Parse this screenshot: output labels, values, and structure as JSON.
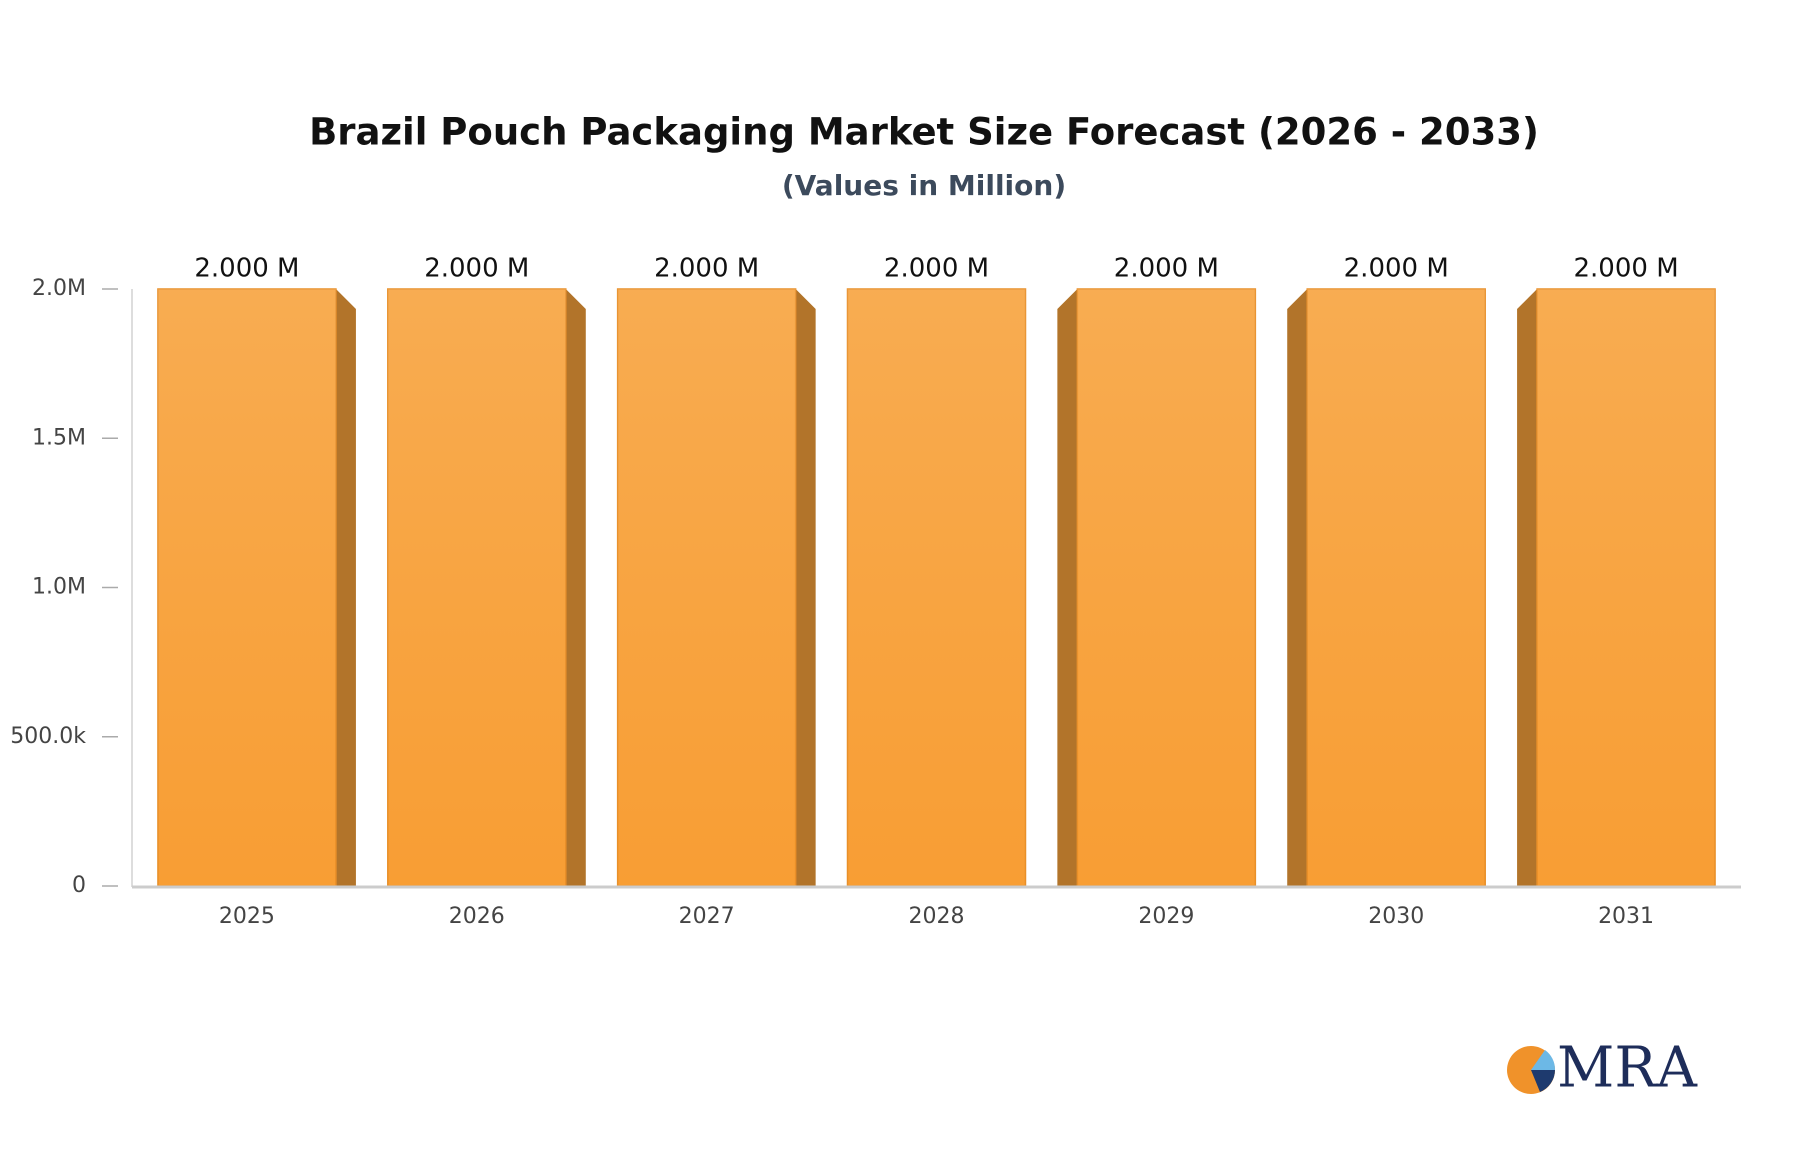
{
  "chart_data": {
    "type": "bar",
    "title": "Brazil Pouch Packaging Market Size Forecast (2026 - 2033)",
    "subtitle": "(Values in Million)",
    "categories": [
      "2025",
      "2026",
      "2027",
      "2028",
      "2029",
      "2030",
      "2031"
    ],
    "values": [
      2000000,
      2000000,
      2000000,
      2000000,
      2000000,
      2000000,
      2000000
    ],
    "value_labels": [
      "2.000 M",
      "2.000 M",
      "2.000 M",
      "2.000 M",
      "2.000 M",
      "2.000 M",
      "2.000 M"
    ],
    "color": "#f7a13a",
    "ylim": [
      0,
      2000000
    ],
    "yticks": [
      0,
      {
        "value": 500000,
        "label": "500.0k"
      },
      {
        "value": 1000000,
        "label": "1.0M"
      },
      {
        "value": 1500000,
        "label": "1.5M"
      },
      {
        "value": 2000000,
        "label": "2.0M"
      }
    ],
    "grid": false
  },
  "logo": "MRA"
}
